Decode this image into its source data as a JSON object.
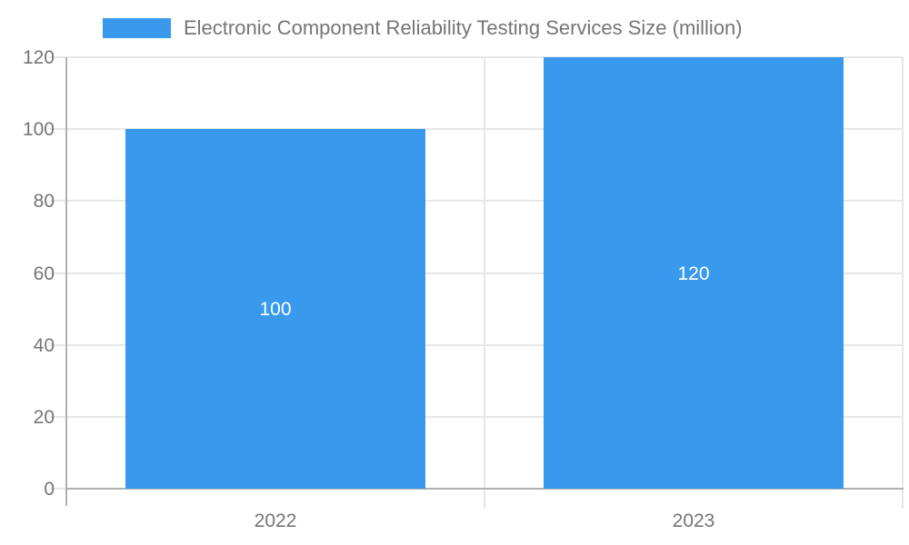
{
  "chart_data": {
    "type": "bar",
    "title": "Electronic Component Reliability Testing Services Size (million)",
    "categories": [
      "2022",
      "2023"
    ],
    "series": [
      {
        "name": "Electronic Component Reliability Testing Services Size (million)",
        "values": [
          100,
          120
        ]
      }
    ],
    "data_labels": [
      "100",
      "120"
    ],
    "xlabel": "",
    "ylabel": "",
    "ylim": [
      0,
      120
    ],
    "yticks": [
      0,
      20,
      40,
      60,
      80,
      100,
      120
    ],
    "grid": true,
    "legend_position": "top-left",
    "colors": {
      "bar": "#3999ED",
      "data_label": "#ffffff",
      "axis_text": "#757575",
      "gridline": "#e7e7e7",
      "axis_line": "#b0b0b0",
      "background": "#ffffff"
    }
  }
}
